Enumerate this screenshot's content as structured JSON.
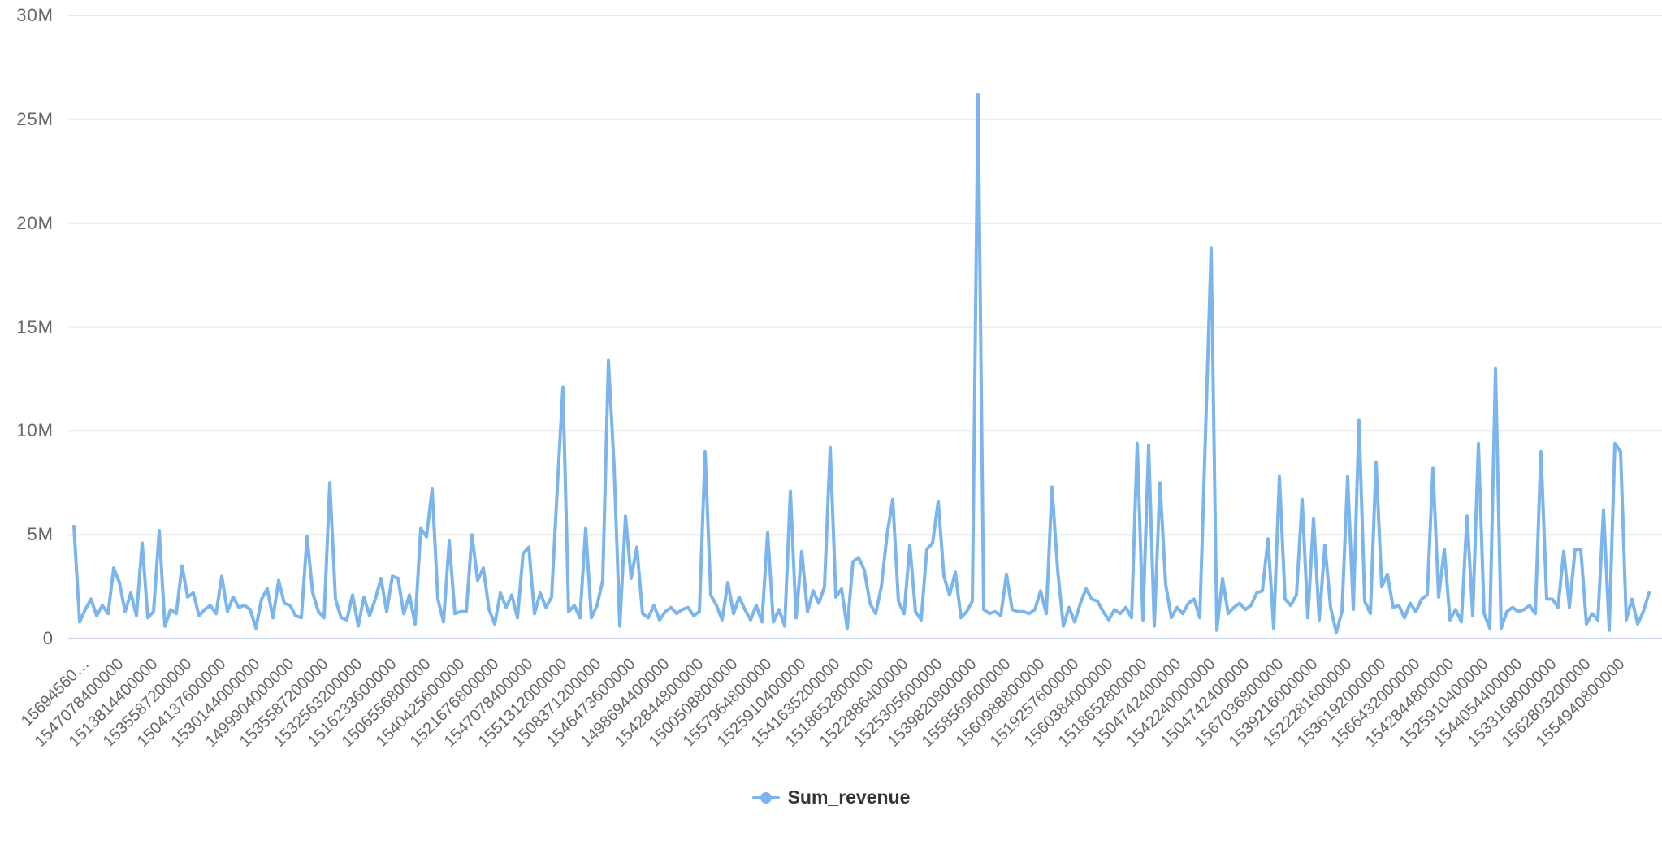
{
  "chart_data": {
    "type": "line",
    "title": "",
    "legend": {
      "position": "bottom",
      "entries": [
        "Sum_revenue"
      ]
    },
    "y_axis": {
      "max_m": 30,
      "ticks": [
        {
          "value_m": 0,
          "label": "0"
        },
        {
          "value_m": 5,
          "label": "5M"
        },
        {
          "value_m": 10,
          "label": "10M"
        },
        {
          "value_m": 15,
          "label": "15M"
        },
        {
          "value_m": 20,
          "label": "20M"
        },
        {
          "value_m": 25,
          "label": "25M"
        },
        {
          "value_m": 30,
          "label": "30M"
        }
      ]
    },
    "x_axis": {
      "label_rotation_deg": -45,
      "tick_every_n_points": 6,
      "labels": [
        "15694560…",
        "1547078400000",
        "1513814400000",
        "1535587200000",
        "1504137600000",
        "1530144000000",
        "1499904000000",
        "1535587200000",
        "1532563200000",
        "1516233600000",
        "1506556800000",
        "1540425600000",
        "1521676800000",
        "1547078400000",
        "1551312000000",
        "1508371200000",
        "1546473600000",
        "1498694400000",
        "1542844800000",
        "1500508800000",
        "1557964800000",
        "1525910400000",
        "1541635200000",
        "1518652800000",
        "1522886400000",
        "1525305600000",
        "1539820800000",
        "1558569600000",
        "1560988800000",
        "1519257600000",
        "1560384000000",
        "1518652800000",
        "1504742400000",
        "1542240000000",
        "1504742400000",
        "1567036800000",
        "1539216000000",
        "1522281600000",
        "1536192000000",
        "1566432000000",
        "1542844800000",
        "1525910400000",
        "1544054400000",
        "1533168000000",
        "1562803200000",
        "1554940800000"
      ]
    },
    "series": [
      {
        "name": "Sum_revenue",
        "color": "#7cb5ec",
        "unit": "millions",
        "values_millions": [
          5.4,
          0.8,
          1.4,
          1.9,
          1.1,
          1.6,
          1.2,
          3.4,
          2.7,
          1.3,
          2.2,
          1.1,
          4.6,
          1.0,
          1.3,
          5.2,
          0.6,
          1.4,
          1.2,
          3.5,
          2.0,
          2.2,
          1.1,
          1.4,
          1.6,
          1.2,
          3.0,
          1.3,
          2.0,
          1.5,
          1.6,
          1.4,
          0.5,
          1.9,
          2.4,
          1.0,
          2.8,
          1.7,
          1.6,
          1.1,
          1.0,
          4.9,
          2.2,
          1.3,
          1.0,
          7.5,
          1.9,
          1.0,
          0.9,
          2.1,
          0.6,
          2.0,
          1.1,
          1.9,
          2.9,
          1.3,
          3.0,
          2.9,
          1.2,
          2.1,
          0.7,
          5.3,
          4.9,
          7.2,
          1.9,
          0.8,
          4.7,
          1.2,
          1.3,
          1.3,
          5.0,
          2.8,
          3.4,
          1.4,
          0.7,
          2.2,
          1.5,
          2.1,
          1.0,
          4.1,
          4.4,
          1.2,
          2.2,
          1.5,
          2.0,
          7.2,
          12.1,
          1.3,
          1.6,
          1.0,
          5.3,
          1.0,
          1.6,
          2.8,
          13.4,
          8.3,
          0.6,
          5.9,
          2.9,
          4.4,
          1.2,
          1.0,
          1.6,
          0.9,
          1.3,
          1.5,
          1.2,
          1.4,
          1.5,
          1.1,
          1.3,
          9.0,
          2.1,
          1.6,
          0.9,
          2.7,
          1.2,
          2.0,
          1.4,
          0.9,
          1.6,
          0.8,
          5.1,
          0.8,
          1.4,
          0.6,
          7.1,
          1.0,
          4.2,
          1.3,
          2.3,
          1.7,
          2.5,
          9.2,
          2.0,
          2.4,
          0.5,
          3.7,
          3.9,
          3.3,
          1.7,
          1.2,
          2.5,
          5.0,
          6.7,
          1.8,
          1.2,
          4.5,
          1.3,
          0.9,
          4.3,
          4.6,
          6.6,
          3.0,
          2.1,
          3.2,
          1.0,
          1.3,
          1.8,
          26.2,
          1.4,
          1.2,
          1.3,
          1.1,
          3.1,
          1.4,
          1.3,
          1.3,
          1.2,
          1.4,
          2.3,
          1.2,
          7.3,
          3.3,
          0.6,
          1.5,
          0.8,
          1.7,
          2.4,
          1.9,
          1.8,
          1.3,
          0.9,
          1.4,
          1.2,
          1.5,
          1.0,
          9.4,
          0.9,
          9.3,
          0.6,
          7.5,
          2.6,
          1.0,
          1.5,
          1.2,
          1.7,
          1.9,
          1.0,
          9.8,
          18.8,
          0.4,
          2.9,
          1.2,
          1.5,
          1.7,
          1.4,
          1.6,
          2.2,
          2.3,
          4.8,
          0.5,
          7.8,
          1.9,
          1.6,
          2.1,
          6.7,
          1.0,
          5.8,
          0.9,
          4.5,
          1.5,
          0.3,
          1.3,
          7.8,
          1.4,
          10.5,
          1.8,
          1.2,
          8.5,
          2.5,
          3.1,
          1.5,
          1.6,
          1.0,
          1.7,
          1.3,
          1.9,
          2.1,
          8.2,
          2.0,
          4.3,
          0.9,
          1.4,
          0.8,
          5.9,
          1.1,
          9.4,
          1.2,
          0.5,
          13.0,
          0.5,
          1.3,
          1.5,
          1.3,
          1.4,
          1.6,
          1.2,
          9.0,
          1.9,
          1.9,
          1.5,
          4.2,
          1.5,
          4.3,
          4.3,
          0.7,
          1.2,
          0.9,
          6.2,
          0.4,
          9.4,
          9.0,
          0.9,
          1.9,
          0.7,
          1.3,
          2.2
        ]
      }
    ],
    "colors": {
      "line": "#7cb5ec",
      "gridline": "#e6e6e6",
      "axis_line": "#ccd6eb",
      "axis_text": "#666666",
      "legend_text": "#333333"
    }
  }
}
